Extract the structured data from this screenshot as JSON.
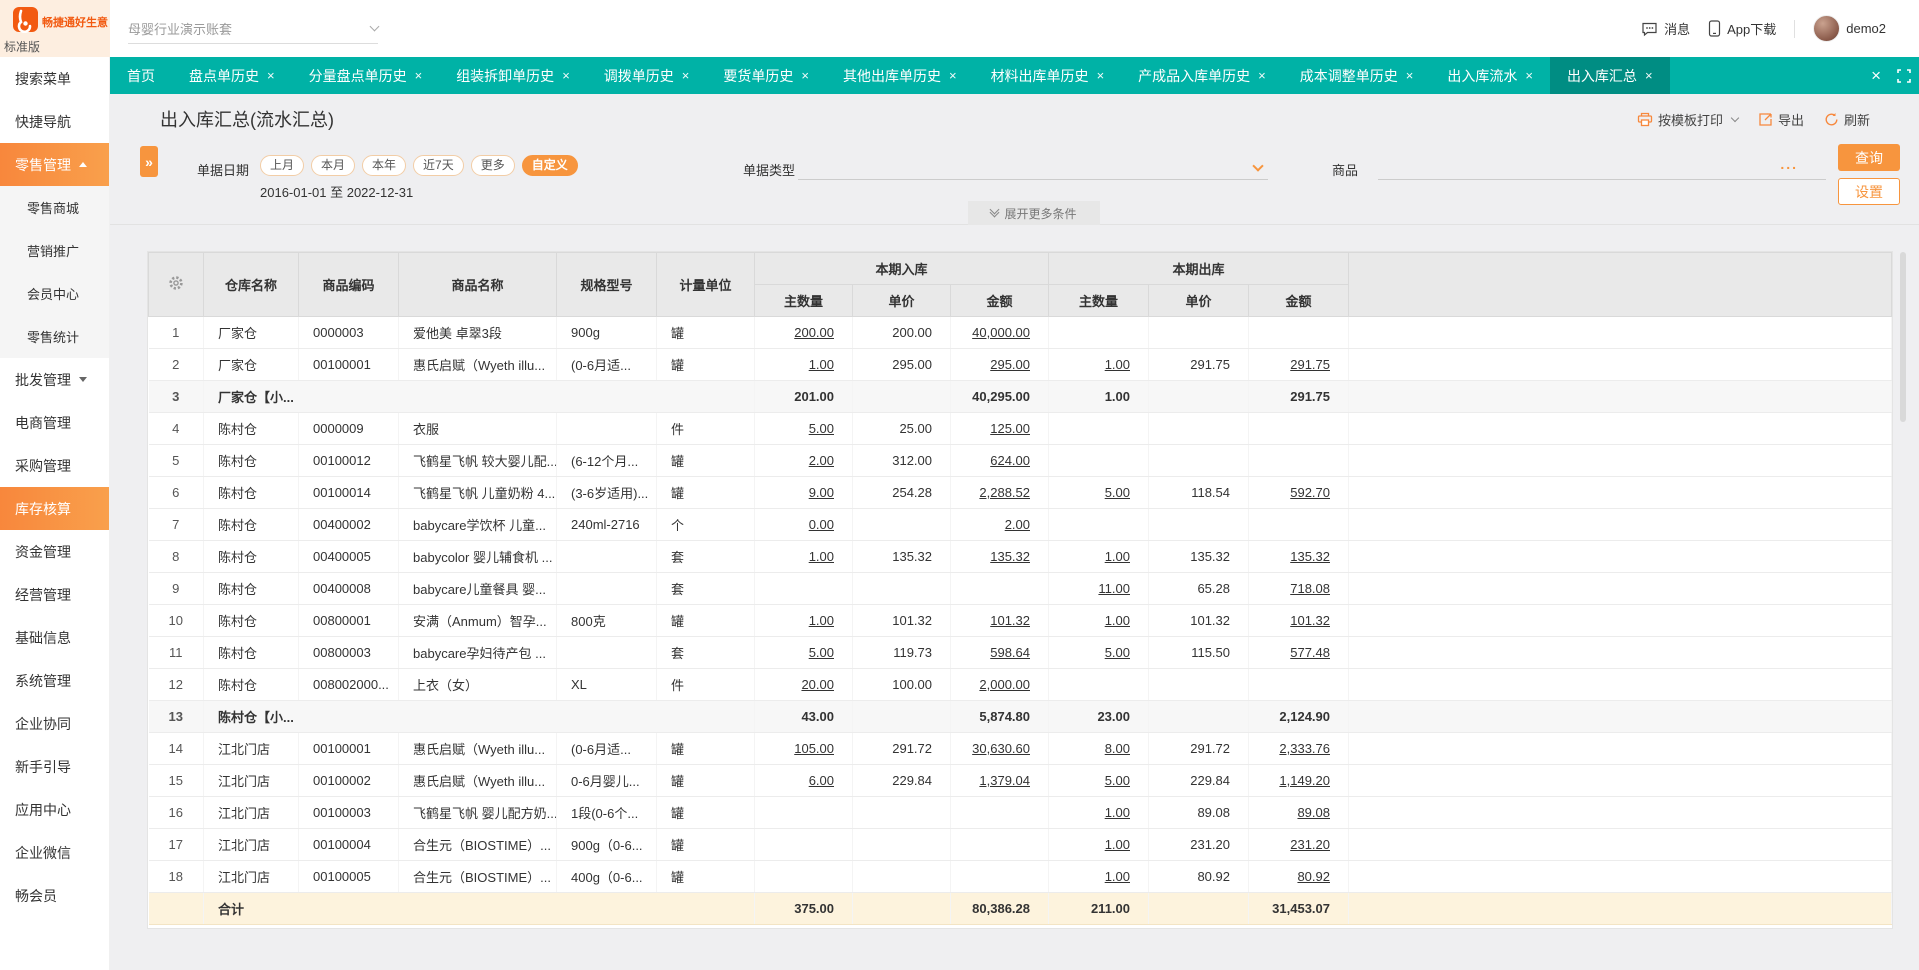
{
  "brand": {
    "name": "畅捷通好生意",
    "edition": "标准版"
  },
  "topbar": {
    "account": "母婴行业演示账套",
    "messages": "消息",
    "app_download": "App下载",
    "username": "demo2"
  },
  "glyphs": {
    "close": "×",
    "expander": "»",
    "ellipsis": "..."
  },
  "colors": {
    "accent": "#f7953e",
    "teal": "#00b2a6",
    "teal_dark": "#008d83",
    "total_row_bg": "#fdf3dd",
    "sidebar_active_bg": "#f8873c"
  },
  "sidebar": {
    "items": [
      {
        "label": "搜索菜单",
        "type": "item"
      },
      {
        "label": "快捷导航",
        "type": "item"
      },
      {
        "label": "零售管理",
        "type": "group-open"
      },
      {
        "label": "零售商城",
        "type": "sub"
      },
      {
        "label": "营销推广",
        "type": "sub"
      },
      {
        "label": "会员中心",
        "type": "sub"
      },
      {
        "label": "零售统计",
        "type": "sub"
      },
      {
        "label": "批发管理",
        "type": "group-closed"
      },
      {
        "label": "电商管理",
        "type": "item"
      },
      {
        "label": "采购管理",
        "type": "item"
      },
      {
        "label": "库存核算",
        "type": "active"
      },
      {
        "label": "资金管理",
        "type": "item"
      },
      {
        "label": "经营管理",
        "type": "item"
      },
      {
        "label": "基础信息",
        "type": "item"
      },
      {
        "label": "系统管理",
        "type": "item"
      },
      {
        "label": "企业协同",
        "type": "item"
      },
      {
        "label": "新手引导",
        "type": "item"
      },
      {
        "label": "应用中心",
        "type": "item"
      },
      {
        "label": "企业微信",
        "type": "item"
      },
      {
        "label": "畅会员",
        "type": "item"
      }
    ]
  },
  "tabs": {
    "items": [
      {
        "label": "首页",
        "closable": false,
        "active": false
      },
      {
        "label": "盘点单历史",
        "closable": true,
        "active": false
      },
      {
        "label": "分量盘点单历史",
        "closable": true,
        "active": false
      },
      {
        "label": "组装拆卸单历史",
        "closable": true,
        "active": false
      },
      {
        "label": "调拨单历史",
        "closable": true,
        "active": false
      },
      {
        "label": "要货单历史",
        "closable": true,
        "active": false
      },
      {
        "label": "其他出库单历史",
        "closable": true,
        "active": false
      },
      {
        "label": "材料出库单历史",
        "closable": true,
        "active": false
      },
      {
        "label": "产成品入库单历史",
        "closable": true,
        "active": false
      },
      {
        "label": "成本调整单历史",
        "closable": true,
        "active": false
      },
      {
        "label": "出入库流水",
        "closable": true,
        "active": false
      },
      {
        "label": "出入库汇总",
        "closable": true,
        "active": true
      }
    ]
  },
  "page": {
    "title": "出入库汇总(流水汇总)",
    "toolbar": {
      "print": "按模板打印",
      "export": "导出",
      "refresh": "刷新"
    }
  },
  "filters": {
    "date": {
      "label": "单据日期",
      "presets": [
        "上月",
        "本月",
        "本年",
        "近7天",
        "更多"
      ],
      "custom": "自定义",
      "range": "2016-01-01 至 2022-12-31"
    },
    "doc_type": {
      "label": "单据类型"
    },
    "product": {
      "label": "商品"
    },
    "buttons": {
      "query": "查询",
      "settings": "设置"
    },
    "expand_more": "展开更多条件"
  },
  "table": {
    "columns": {
      "warehouse": "仓库名称",
      "code": "商品编码",
      "name": "商品名称",
      "spec": "规格型号",
      "unit": "计量单位",
      "in_group": "本期入库",
      "out_group": "本期出库",
      "qty": "主数量",
      "price": "单价",
      "amount": "金额"
    },
    "total_label": "合计",
    "rows": [
      {
        "kind": "data",
        "no": "1",
        "warehouse": "厂家仓",
        "code": "0000003",
        "name": "爱他美 卓翠3段",
        "spec": "900g",
        "unit": "罐",
        "in_qty": "200.00",
        "in_price": "200.00",
        "in_amt": "40,000.00",
        "out_qty": "",
        "out_price": "",
        "out_amt": ""
      },
      {
        "kind": "data",
        "no": "2",
        "warehouse": "厂家仓",
        "code": "00100001",
        "name": "惠氏启赋（Wyeth illu...",
        "spec": "(0-6月适...",
        "unit": "罐",
        "in_qty": "1.00",
        "in_price": "295.00",
        "in_amt": "295.00",
        "out_qty": "1.00",
        "out_price": "291.75",
        "out_amt": "291.75"
      },
      {
        "kind": "subtotal",
        "no": "3",
        "label": "厂家仓【小...",
        "in_qty": "201.00",
        "in_price": "",
        "in_amt": "40,295.00",
        "out_qty": "1.00",
        "out_price": "",
        "out_amt": "291.75"
      },
      {
        "kind": "data",
        "no": "4",
        "warehouse": "陈村仓",
        "code": "0000009",
        "name": "衣服",
        "spec": "",
        "unit": "件",
        "in_qty": "5.00",
        "in_price": "25.00",
        "in_amt": "125.00",
        "out_qty": "",
        "out_price": "",
        "out_amt": ""
      },
      {
        "kind": "data",
        "no": "5",
        "warehouse": "陈村仓",
        "code": "00100012",
        "name": "飞鹤星飞帆 较大婴儿配...",
        "spec": "(6-12个月...",
        "unit": "罐",
        "in_qty": "2.00",
        "in_price": "312.00",
        "in_amt": "624.00",
        "out_qty": "",
        "out_price": "",
        "out_amt": ""
      },
      {
        "kind": "data",
        "no": "6",
        "warehouse": "陈村仓",
        "code": "00100014",
        "name": "飞鹤星飞帆 儿童奶粉 4...",
        "spec": "(3-6岁适用)...",
        "unit": "罐",
        "in_qty": "9.00",
        "in_price": "254.28",
        "in_amt": "2,288.52",
        "out_qty": "5.00",
        "out_price": "118.54",
        "out_amt": "592.70"
      },
      {
        "kind": "data",
        "no": "7",
        "warehouse": "陈村仓",
        "code": "00400002",
        "name": "babycare学饮杯 儿童...",
        "spec": "240ml-2716",
        "unit": "个",
        "in_qty": "0.00",
        "in_price": "",
        "in_amt": "2.00",
        "out_qty": "",
        "out_price": "",
        "out_amt": ""
      },
      {
        "kind": "data",
        "no": "8",
        "warehouse": "陈村仓",
        "code": "00400005",
        "name": "babycolor 婴儿辅食机 ...",
        "spec": "",
        "unit": "套",
        "in_qty": "1.00",
        "in_price": "135.32",
        "in_amt": "135.32",
        "out_qty": "1.00",
        "out_price": "135.32",
        "out_amt": "135.32"
      },
      {
        "kind": "data",
        "no": "9",
        "warehouse": "陈村仓",
        "code": "00400008",
        "name": "babycare儿童餐具 婴...",
        "spec": "",
        "unit": "套",
        "in_qty": "",
        "in_price": "",
        "in_amt": "",
        "out_qty": "11.00",
        "out_price": "65.28",
        "out_amt": "718.08"
      },
      {
        "kind": "data",
        "no": "10",
        "warehouse": "陈村仓",
        "code": "00800001",
        "name": "安满（Anmum）智孕...",
        "spec": "800克",
        "unit": "罐",
        "in_qty": "1.00",
        "in_price": "101.32",
        "in_amt": "101.32",
        "out_qty": "1.00",
        "out_price": "101.32",
        "out_amt": "101.32"
      },
      {
        "kind": "data",
        "no": "11",
        "warehouse": "陈村仓",
        "code": "00800003",
        "name": "babycare孕妇待产包 ...",
        "spec": "",
        "unit": "套",
        "in_qty": "5.00",
        "in_price": "119.73",
        "in_amt": "598.64",
        "out_qty": "5.00",
        "out_price": "115.50",
        "out_amt": "577.48"
      },
      {
        "kind": "data",
        "no": "12",
        "warehouse": "陈村仓",
        "code": "008002000...",
        "name": "上衣（女）",
        "spec": "XL",
        "unit": "件",
        "in_qty": "20.00",
        "in_price": "100.00",
        "in_amt": "2,000.00",
        "out_qty": "",
        "out_price": "",
        "out_amt": ""
      },
      {
        "kind": "subtotal",
        "no": "13",
        "label": "陈村仓【小...",
        "in_qty": "43.00",
        "in_price": "",
        "in_amt": "5,874.80",
        "out_qty": "23.00",
        "out_price": "",
        "out_amt": "2,124.90"
      },
      {
        "kind": "data",
        "no": "14",
        "warehouse": "江北门店",
        "code": "00100001",
        "name": "惠氏启赋（Wyeth illu...",
        "spec": "(0-6月适...",
        "unit": "罐",
        "in_qty": "105.00",
        "in_price": "291.72",
        "in_amt": "30,630.60",
        "out_qty": "8.00",
        "out_price": "291.72",
        "out_amt": "2,333.76"
      },
      {
        "kind": "data",
        "no": "15",
        "warehouse": "江北门店",
        "code": "00100002",
        "name": "惠氏启赋（Wyeth illu...",
        "spec": "0-6月婴儿...",
        "unit": "罐",
        "in_qty": "6.00",
        "in_price": "229.84",
        "in_amt": "1,379.04",
        "out_qty": "5.00",
        "out_price": "229.84",
        "out_amt": "1,149.20"
      },
      {
        "kind": "data",
        "no": "16",
        "warehouse": "江北门店",
        "code": "00100003",
        "name": "飞鹤星飞帆 婴儿配方奶...",
        "spec": "1段(0-6个...",
        "unit": "罐",
        "in_qty": "",
        "in_price": "",
        "in_amt": "",
        "out_qty": "1.00",
        "out_price": "89.08",
        "out_amt": "89.08"
      },
      {
        "kind": "data",
        "no": "17",
        "warehouse": "江北门店",
        "code": "00100004",
        "name": "合生元（BIOSTIME）...",
        "spec": "900g（0-6...",
        "unit": "罐",
        "in_qty": "",
        "in_price": "",
        "in_amt": "",
        "out_qty": "1.00",
        "out_price": "231.20",
        "out_amt": "231.20"
      },
      {
        "kind": "data",
        "no": "18",
        "warehouse": "江北门店",
        "code": "00100005",
        "name": "合生元（BIOSTIME）...",
        "spec": "400g（0-6...",
        "unit": "罐",
        "in_qty": "",
        "in_price": "",
        "in_amt": "",
        "out_qty": "1.00",
        "out_price": "80.92",
        "out_amt": "80.92"
      },
      {
        "kind": "total",
        "no": "",
        "label": "合计",
        "in_qty": "375.00",
        "in_price": "",
        "in_amt": "80,386.28",
        "out_qty": "211.00",
        "out_price": "",
        "out_amt": "31,453.07"
      }
    ]
  }
}
